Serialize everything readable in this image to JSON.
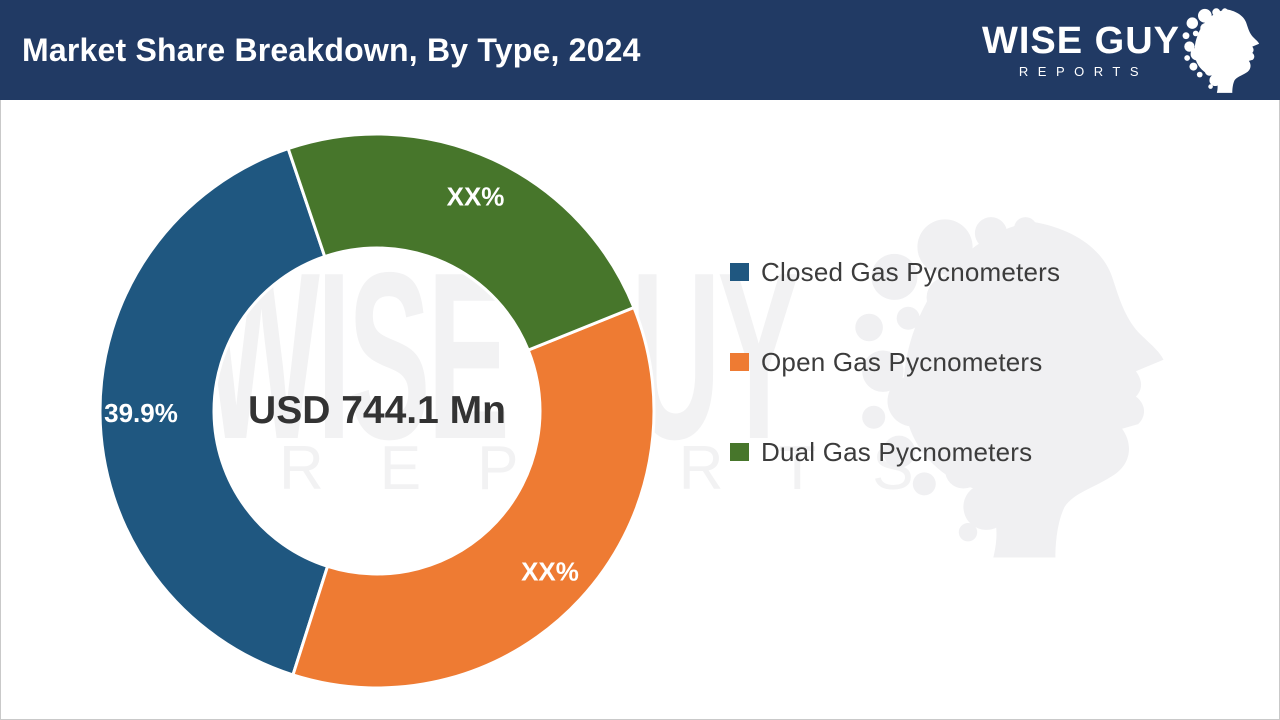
{
  "header": {
    "title": "Market Share Breakdown, By Type, 2024",
    "logo": {
      "brand": "WISE GUY",
      "sub": "REPORTS"
    }
  },
  "watermark": {
    "brand": "WISE GUY",
    "sub": "REPORTS"
  },
  "chart_data": {
    "type": "pie",
    "subtype": "donut",
    "title": "Market Share Breakdown, By Type, 2024",
    "year": "2024",
    "center_label": "USD 744.1 Mn",
    "start_angle_deg": 108.7,
    "direction": "counterclockwise",
    "legend_position": "right",
    "inner_radius_ratio": 0.59,
    "segments": [
      {
        "label": "Closed Gas Pycnometers",
        "slice_label": "39.9%",
        "value_pct": 39.9,
        "color": "#1F5780"
      },
      {
        "label": "Open Gas Pycnometers",
        "slice_label": "XX%",
        "value_pct": 36.0,
        "color": "#EE7B33"
      },
      {
        "label": "Dual Gas Pycnometers",
        "slice_label": "XX%",
        "value_pct": 24.1,
        "color": "#47762B"
      }
    ]
  },
  "colors": {
    "header_bg": "#213A64",
    "header_text": "#FFFFFF",
    "center_text": "#333333",
    "legend_text": "#3C3C3C",
    "slice_label_text": "#FFFFFF",
    "slice_divider": "#FFFFFF",
    "watermark": "#F2F2F3",
    "border": "#C9C9C9",
    "background": "#FFFFFF"
  }
}
